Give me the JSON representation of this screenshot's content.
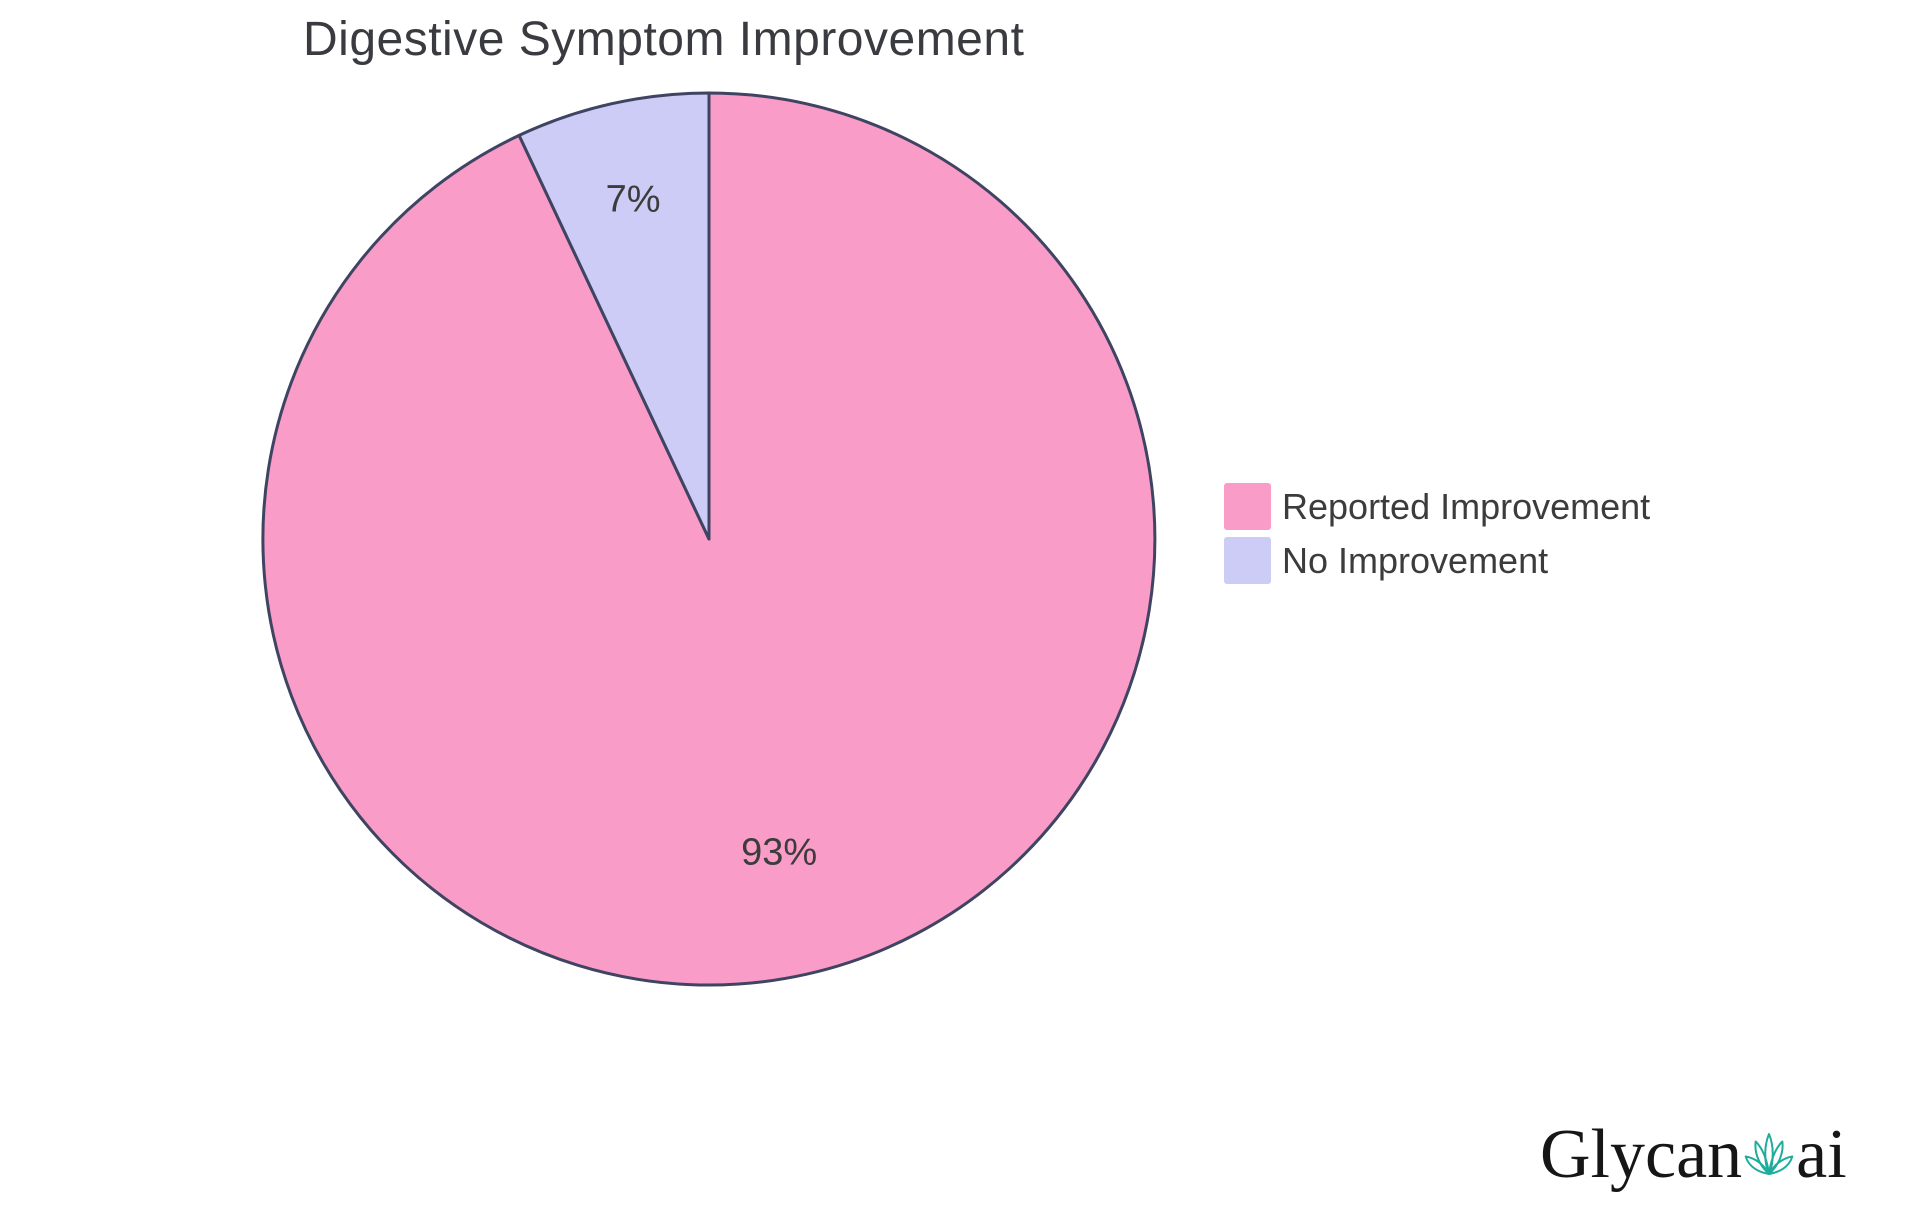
{
  "page": {
    "background": "#FFFFFF"
  },
  "title": {
    "text": "Digestive Symptom Improvement"
  },
  "chart_data": {
    "type": "pie",
    "title": "Digestive Symptom Improvement",
    "slices": [
      {
        "label": "Reported Improvement",
        "value": 93,
        "display": "93%",
        "color": "#F99CC8"
      },
      {
        "label": "No Improvement",
        "value": 7,
        "display": "7%",
        "color": "#CCCCF6"
      }
    ],
    "start_angle": "12-oclock",
    "direction": "clockwise",
    "outline_color": "#3E4462",
    "outline_width": 3,
    "label_color": "#3C3C3C",
    "label_font_size": 38,
    "label_radius_frac": [
      0.72,
      0.78
    ],
    "legend_position": "right-middle",
    "background": "#FFFFFF"
  },
  "legend": {
    "items": [
      {
        "label": "Reported Improvement",
        "color": "#F99CC8"
      },
      {
        "label": "No Improvement",
        "color": "#CCCCF6"
      }
    ]
  },
  "branding": {
    "name_left": "Glycan",
    "name_right": "ai",
    "icon": "agave-plant-icon",
    "icon_color": "#1FAD9B",
    "text_color": "#161616"
  }
}
